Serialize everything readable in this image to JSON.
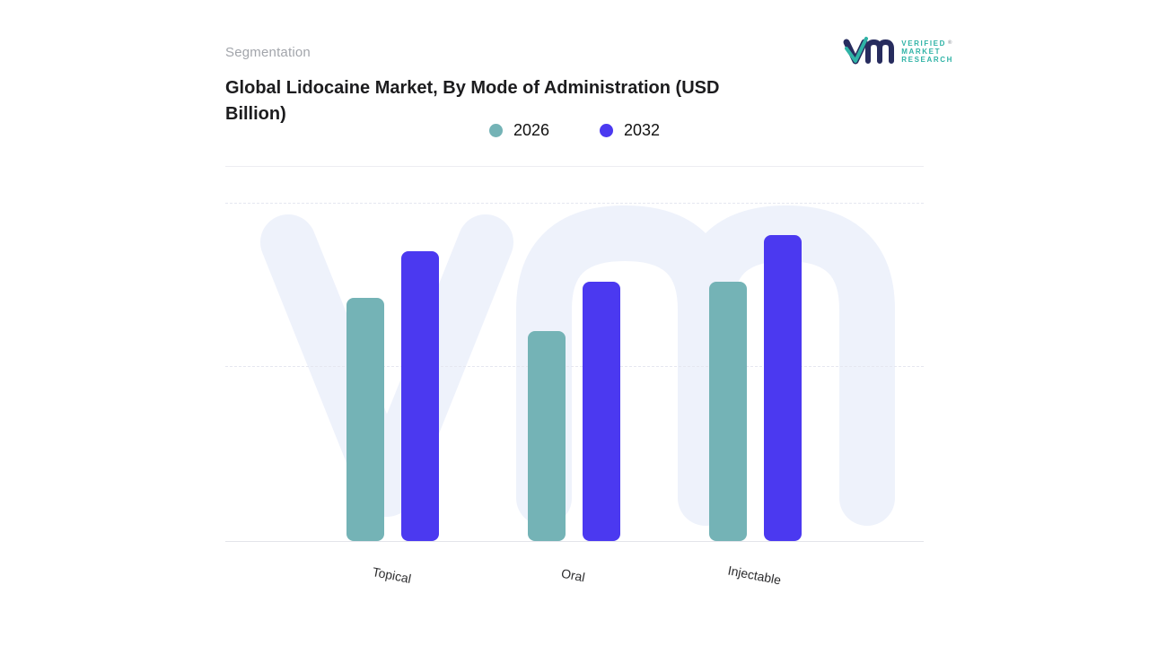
{
  "header": {
    "eyebrow": "Segmentation",
    "title": "Global Lidocaine Market, By Mode of Administration (USD Billion)",
    "logo": {
      "line1": "VERIFIED",
      "line2": "MARKET",
      "line3": "RESEARCH",
      "registered_mark": "®",
      "monogram_color": "#272c5e",
      "accent_color": "#2fb3a6"
    }
  },
  "chart_data": {
    "type": "bar",
    "title": "Global Lidocaine Market, By Mode of Administration (USD Billion)",
    "units": "USD Billion",
    "categories": [
      "Topical",
      "Oral",
      "Injectable"
    ],
    "series": [
      {
        "name": "2026",
        "color": "#74b3b6",
        "values": [
          2.71,
          2.34,
          2.89
        ]
      },
      {
        "name": "2032",
        "color": "#4b39f0",
        "values": [
          3.23,
          2.89,
          3.41
        ]
      }
    ],
    "xlabel": "",
    "ylabel": "",
    "ylim": [
      0,
      3.78
    ],
    "y_axis_labels_visible": false,
    "gridlines": "dashed-horizontal",
    "legend_position": "top-center"
  }
}
